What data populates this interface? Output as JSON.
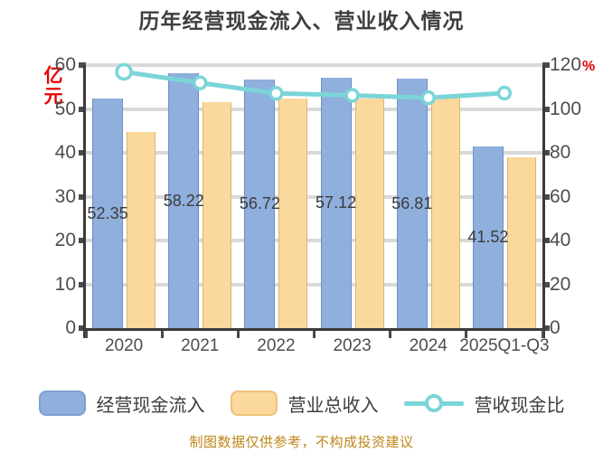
{
  "chart_data": {
    "type": "bar",
    "title": "历年经营现金流入、营业收入情况",
    "categories": [
      "2020",
      "2021",
      "2022",
      "2023",
      "2024",
      "2025Q1-Q3"
    ],
    "series": [
      {
        "name": "经营现金流入",
        "type": "bar",
        "axis": "left",
        "color": "#8fafdd",
        "border_color": "#6f8fc0",
        "values": [
          52.35,
          58.22,
          56.72,
          57.12,
          56.81,
          41.52
        ],
        "labels": [
          "52.35",
          "58.22",
          "56.72",
          "57.12",
          "56.81",
          "41.52"
        ]
      },
      {
        "name": "营业总收入",
        "type": "bar",
        "axis": "left",
        "color": "#fbd89b",
        "border_color": "#dcb76f",
        "values": [
          44.8,
          51.6,
          52.4,
          52.4,
          52.6,
          38.9
        ],
        "labels": []
      },
      {
        "name": "营收现金比",
        "type": "line",
        "axis": "right",
        "color": "#7bd5d8",
        "marker": "hollow-circle",
        "values": [
          116.9,
          111.9,
          107.1,
          106.2,
          105.1,
          107.2
        ],
        "labels": []
      }
    ],
    "left_axis": {
      "unit": "亿元",
      "min": 0,
      "max": 60,
      "ticks": [
        0,
        10,
        20,
        30,
        40,
        50,
        60
      ]
    },
    "right_axis": {
      "unit": "%",
      "min": 0,
      "max": 120,
      "ticks": [
        0,
        20,
        40,
        60,
        80,
        100,
        120
      ]
    },
    "grid": true,
    "legend_position": "bottom"
  },
  "colors": {
    "grid": "#d9d9d9",
    "axis": "#3a3a3a",
    "tick_label": "#4d4d4d",
    "data_label": "#3c3c3c",
    "unit": "#e60000",
    "title": "#3f3f3f",
    "footer": "#bf8617",
    "background": "#ffffff"
  },
  "footer": {
    "text": "制图数据仅供参考，不构成投资建议"
  }
}
